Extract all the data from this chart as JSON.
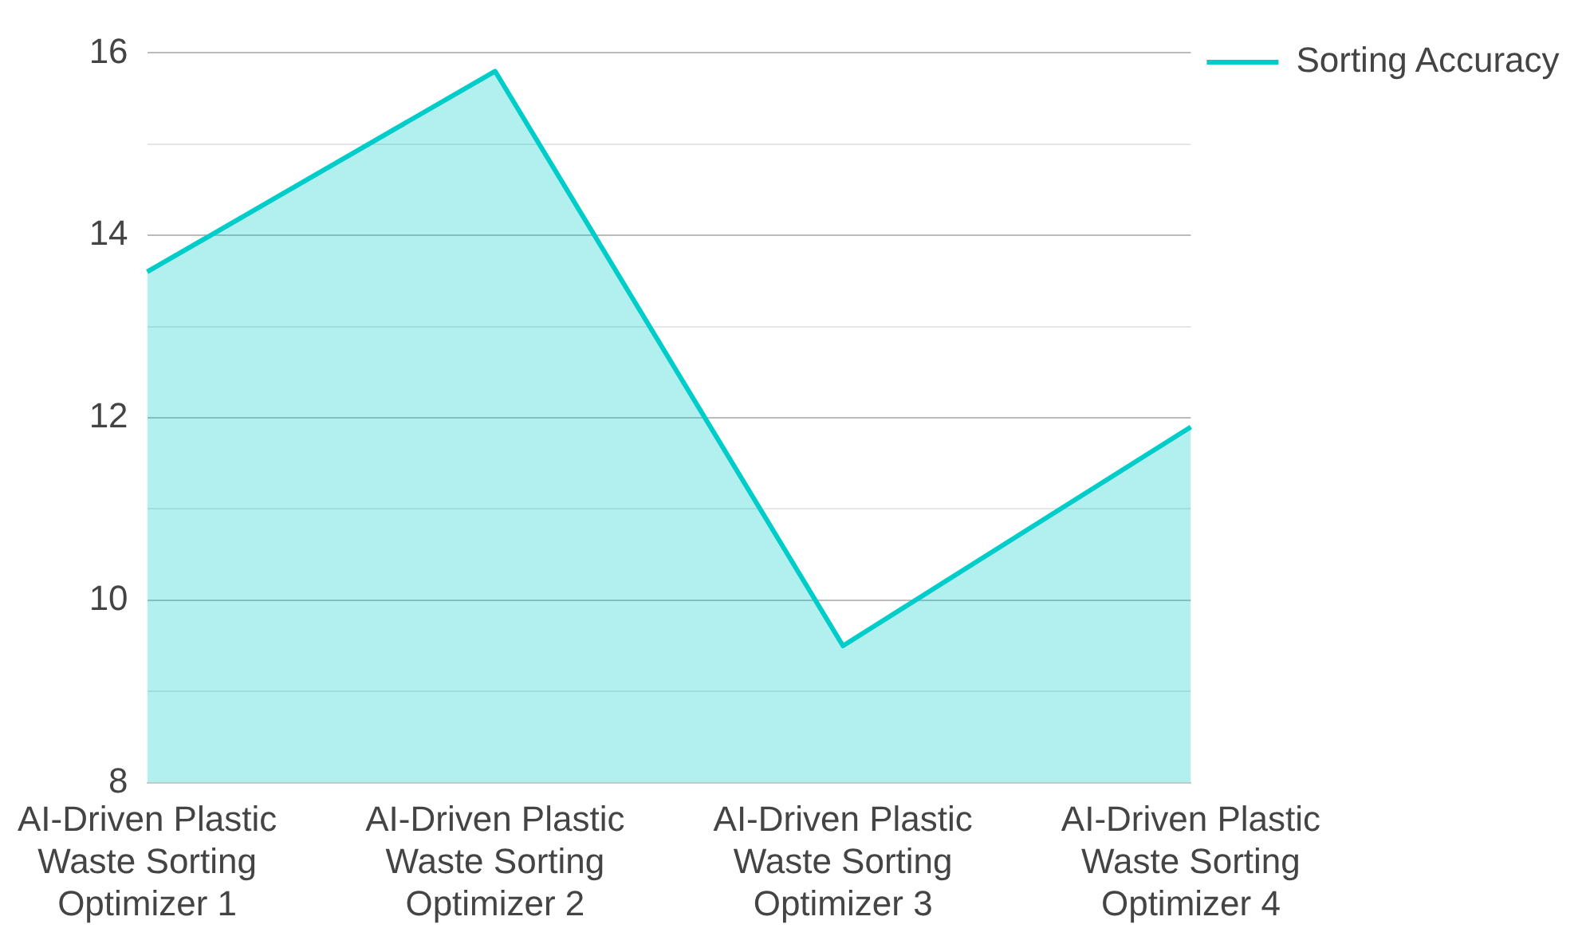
{
  "chart_data": {
    "type": "area",
    "categories": [
      "AI-Driven Plastic Waste Sorting Optimizer 1",
      "AI-Driven Plastic Waste Sorting Optimizer 2",
      "AI-Driven Plastic Waste Sorting Optimizer 3",
      "AI-Driven Plastic Waste Sorting Optimizer 4"
    ],
    "series": [
      {
        "name": "Sorting Accuracy",
        "color": "#00cdc9",
        "values": [
          13.6,
          15.8,
          9.5,
          11.9
        ]
      }
    ],
    "ylim": [
      8,
      16
    ],
    "yticks": [
      8,
      {
        "value": 9,
        "label": null
      },
      10,
      {
        "value": 11,
        "label": null
      },
      12,
      {
        "value": 13,
        "label": null
      },
      14,
      {
        "value": 15,
        "label": null
      },
      16
    ],
    "grid": "y",
    "legend": "top right",
    "marker": "none",
    "line_style": "solid"
  }
}
